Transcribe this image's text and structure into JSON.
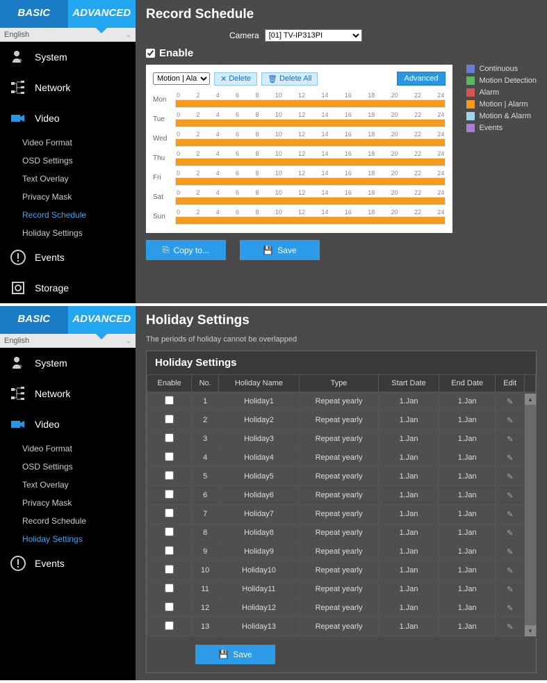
{
  "tabs": {
    "basic": "BASIC",
    "advanced": "ADVANCED"
  },
  "language": "English",
  "nav": {
    "system": "System",
    "network": "Network",
    "video": "Video",
    "events": "Events",
    "storage": "Storage"
  },
  "videoSub": [
    "Video Format",
    "OSD Settings",
    "Text Overlay",
    "Privacy Mask",
    "Record Schedule",
    "Holiday Settings"
  ],
  "page1": {
    "title": "Record Schedule",
    "cameraLabel": "Camera",
    "cameraValue": "[01] TV-IP313PI",
    "enable": "Enable",
    "mode": "Motion | Alarm",
    "delete": "Delete",
    "deleteAll": "Delete All",
    "advanced": "Advanced",
    "hours": [
      "0",
      "2",
      "4",
      "6",
      "8",
      "10",
      "12",
      "14",
      "16",
      "18",
      "20",
      "22",
      "24"
    ],
    "days": [
      "Mon",
      "Tue",
      "Wed",
      "Thu",
      "Fri",
      "Sat",
      "Sun"
    ],
    "barColor": "#f49b1b",
    "legend": [
      {
        "label": "Continuous",
        "color": "#6b7cd6"
      },
      {
        "label": "Motion Detection",
        "color": "#5cb85c"
      },
      {
        "label": "Alarm",
        "color": "#d9534f"
      },
      {
        "label": "Motion | Alarm",
        "color": "#f49b1b"
      },
      {
        "label": "Motion & Alarm",
        "color": "#9ed2f0"
      },
      {
        "label": "Events",
        "color": "#a87fd0"
      }
    ],
    "copyTo": "Copy to...",
    "save": "Save"
  },
  "page2": {
    "title": "Holiday Settings",
    "subtitle": "The periods of holiday cannot be overlapped",
    "heading": "Holiday Settings",
    "cols": [
      "Enable",
      "No.",
      "Holiday Name",
      "Type",
      "Start Date",
      "End Date",
      "Edit"
    ],
    "rows": [
      {
        "no": "1",
        "name": "Holiday1",
        "type": "Repeat yearly",
        "start": "1.Jan",
        "end": "1.Jan"
      },
      {
        "no": "2",
        "name": "Holiday2",
        "type": "Repeat yearly",
        "start": "1.Jan",
        "end": "1.Jan"
      },
      {
        "no": "3",
        "name": "Holiday3",
        "type": "Repeat yearly",
        "start": "1.Jan",
        "end": "1.Jan"
      },
      {
        "no": "4",
        "name": "Holiday4",
        "type": "Repeat yearly",
        "start": "1.Jan",
        "end": "1.Jan"
      },
      {
        "no": "5",
        "name": "Holiday5",
        "type": "Repeat yearly",
        "start": "1.Jan",
        "end": "1.Jan"
      },
      {
        "no": "6",
        "name": "Holiday6",
        "type": "Repeat yearly",
        "start": "1.Jan",
        "end": "1.Jan"
      },
      {
        "no": "7",
        "name": "Holiday7",
        "type": "Repeat yearly",
        "start": "1.Jan",
        "end": "1.Jan"
      },
      {
        "no": "8",
        "name": "Holiday8",
        "type": "Repeat yearly",
        "start": "1.Jan",
        "end": "1.Jan"
      },
      {
        "no": "9",
        "name": "Holiday9",
        "type": "Repeat yearly",
        "start": "1.Jan",
        "end": "1.Jan"
      },
      {
        "no": "10",
        "name": "Holiday10",
        "type": "Repeat yearly",
        "start": "1.Jan",
        "end": "1.Jan"
      },
      {
        "no": "11",
        "name": "Holiday11",
        "type": "Repeat yearly",
        "start": "1.Jan",
        "end": "1.Jan"
      },
      {
        "no": "12",
        "name": "Holiday12",
        "type": "Repeat yearly",
        "start": "1.Jan",
        "end": "1.Jan"
      },
      {
        "no": "13",
        "name": "Holiday13",
        "type": "Repeat yearly",
        "start": "1.Jan",
        "end": "1.Jan"
      }
    ],
    "save": "Save"
  }
}
